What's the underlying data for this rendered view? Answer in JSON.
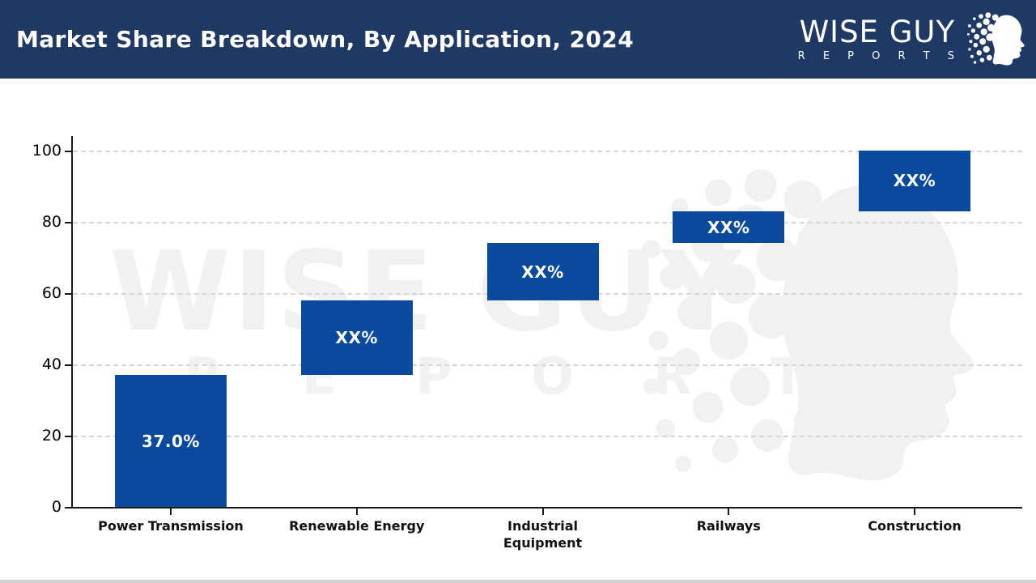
{
  "header": {
    "title": "Market Share Breakdown, By Application, 2024",
    "bg_color": "#1f3864",
    "logo": {
      "line1": "WISE GUY",
      "line2": "R E P O R T S"
    }
  },
  "watermark": {
    "line1": "WISE GUY",
    "line2": "R E P O R T S"
  },
  "chart_data": {
    "type": "bar",
    "subtype": "waterfall",
    "title": "Market Share Breakdown, By Application, 2024",
    "categories": [
      "Power Transmission",
      "Renewable Energy",
      "Industrial Equipment",
      "Railways",
      "Construction"
    ],
    "categories_display": [
      [
        "Power Transmission"
      ],
      [
        "Renewable Energy"
      ],
      [
        "Industrial",
        "Equipment"
      ],
      [
        "Railways"
      ],
      [
        "Construction"
      ]
    ],
    "segments": [
      {
        "category": "Power Transmission",
        "start": 0,
        "end": 37,
        "label": "37.0%"
      },
      {
        "category": "Renewable Energy",
        "start": 37,
        "end": 58,
        "label": "XX%"
      },
      {
        "category": "Industrial Equipment",
        "start": 58,
        "end": 74,
        "label": "XX%"
      },
      {
        "category": "Railways",
        "start": 74,
        "end": 83,
        "label": "XX%"
      },
      {
        "category": "Construction",
        "start": 83,
        "end": 100,
        "label": "XX%"
      }
    ],
    "xlabel": "",
    "ylabel": "",
    "ylim": [
      0,
      100
    ],
    "yticks": [
      0,
      20,
      40,
      60,
      80,
      100
    ],
    "grid": "horizontal dashed",
    "legend": "none",
    "bar_color": "#0a4a9e",
    "bar_label_color": "#ffffff"
  }
}
